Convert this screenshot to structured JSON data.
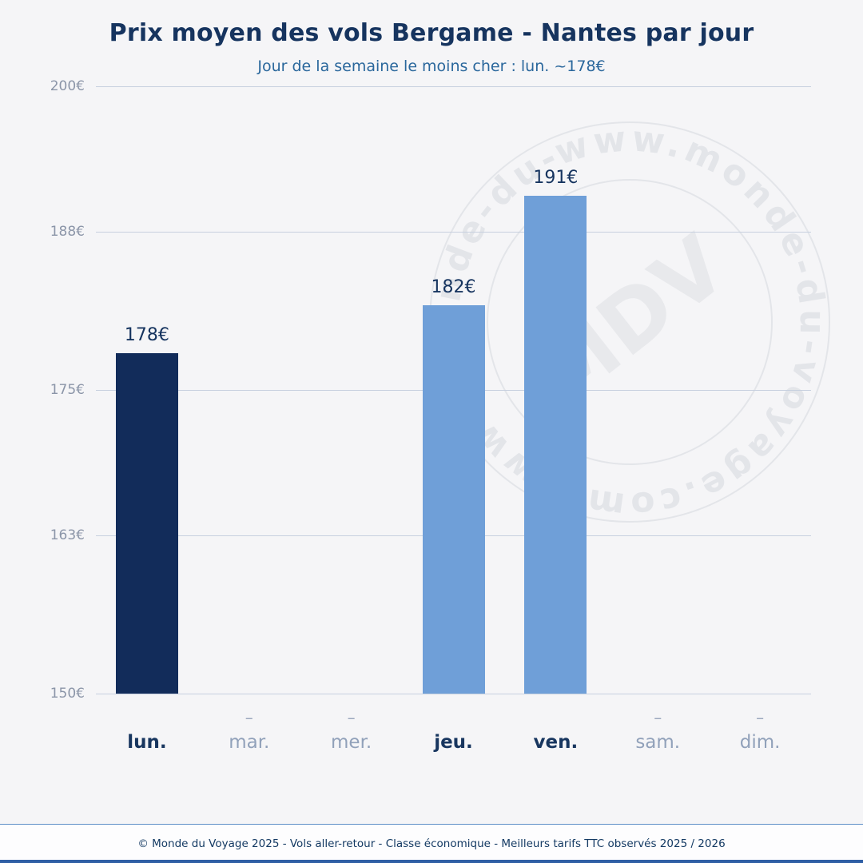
{
  "title": "Prix moyen des vols Bergame - Nantes par jour",
  "subtitle": "Jour de la semaine le moins cher : lun. ~178€",
  "footer": "© Monde du Voyage 2025 - Vols aller-retour - Classe économique - Meilleurs tarifs TTC observés 2025 / 2026",
  "watermark": {
    "ring_text": "www.monde-du-voyage.com · www.monde-du-voyage.com ·",
    "center_text": "MDV"
  },
  "chart_data": {
    "type": "bar",
    "title": "Prix moyen des vols Bergame - Nantes par jour",
    "subtitle": "Jour de la semaine le moins cher : lun. ~178€",
    "categories": [
      "lun.",
      "mar.",
      "mer.",
      "jeu.",
      "ven.",
      "sam.",
      "dim."
    ],
    "values": [
      178,
      null,
      null,
      182,
      191,
      null,
      null
    ],
    "value_labels": [
      "178€",
      "",
      "",
      "182€",
      "191€",
      "",
      ""
    ],
    "missing_marker": "–",
    "unit": "€",
    "ylim": [
      150,
      200
    ],
    "yticks": [
      200,
      188,
      175,
      163,
      150
    ],
    "ytick_labels": [
      "200€",
      "188€",
      "175€",
      "163€",
      "150€"
    ],
    "highlight_index": 0,
    "colors": {
      "highlight_bar": "#122c5a",
      "bar": "#6f9fd8",
      "grid": "#c7d0df",
      "title": "#16345f",
      "subtitle": "#2a679c",
      "tick": "#8b95a8",
      "day_active": "#18365f",
      "day_inactive": "#91a1ba"
    },
    "grid": true,
    "legend": null
  }
}
